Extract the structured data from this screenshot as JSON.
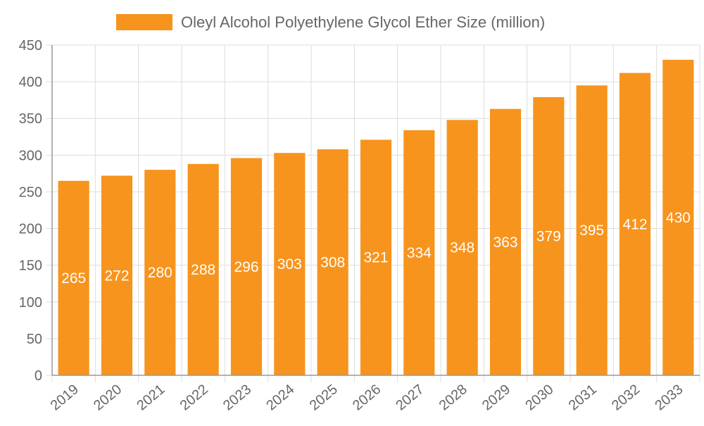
{
  "chart_data": {
    "type": "bar",
    "title": "",
    "xlabel": "",
    "ylabel": "",
    "categories": [
      "2019",
      "2020",
      "2021",
      "2022",
      "2023",
      "2024",
      "2025",
      "2026",
      "2027",
      "2028",
      "2029",
      "2030",
      "2031",
      "2032",
      "2033"
    ],
    "series": [
      {
        "name": "Oleyl Alcohol Polyethylene Glycol Ether Size (million)",
        "values": [
          265,
          272,
          280,
          288,
          296,
          303,
          308,
          321,
          334,
          348,
          363,
          379,
          395,
          412,
          430
        ]
      }
    ],
    "data_labels": [
      "265",
      "272",
      "280",
      "288",
      "296",
      "303",
      "308",
      "321",
      "334",
      "348",
      "363",
      "379",
      "395",
      "412",
      "430"
    ],
    "y_ticks": [
      "0",
      "50",
      "100",
      "150",
      "200",
      "250",
      "300",
      "350",
      "400",
      "450"
    ],
    "ylim": [
      0,
      450
    ],
    "grid": true,
    "legend_position": "top",
    "colors": {
      "bar": "#f7941d",
      "grid": "#dddddd",
      "axis": "#999999",
      "text": "#666666",
      "data_label": "#ffffff"
    }
  }
}
